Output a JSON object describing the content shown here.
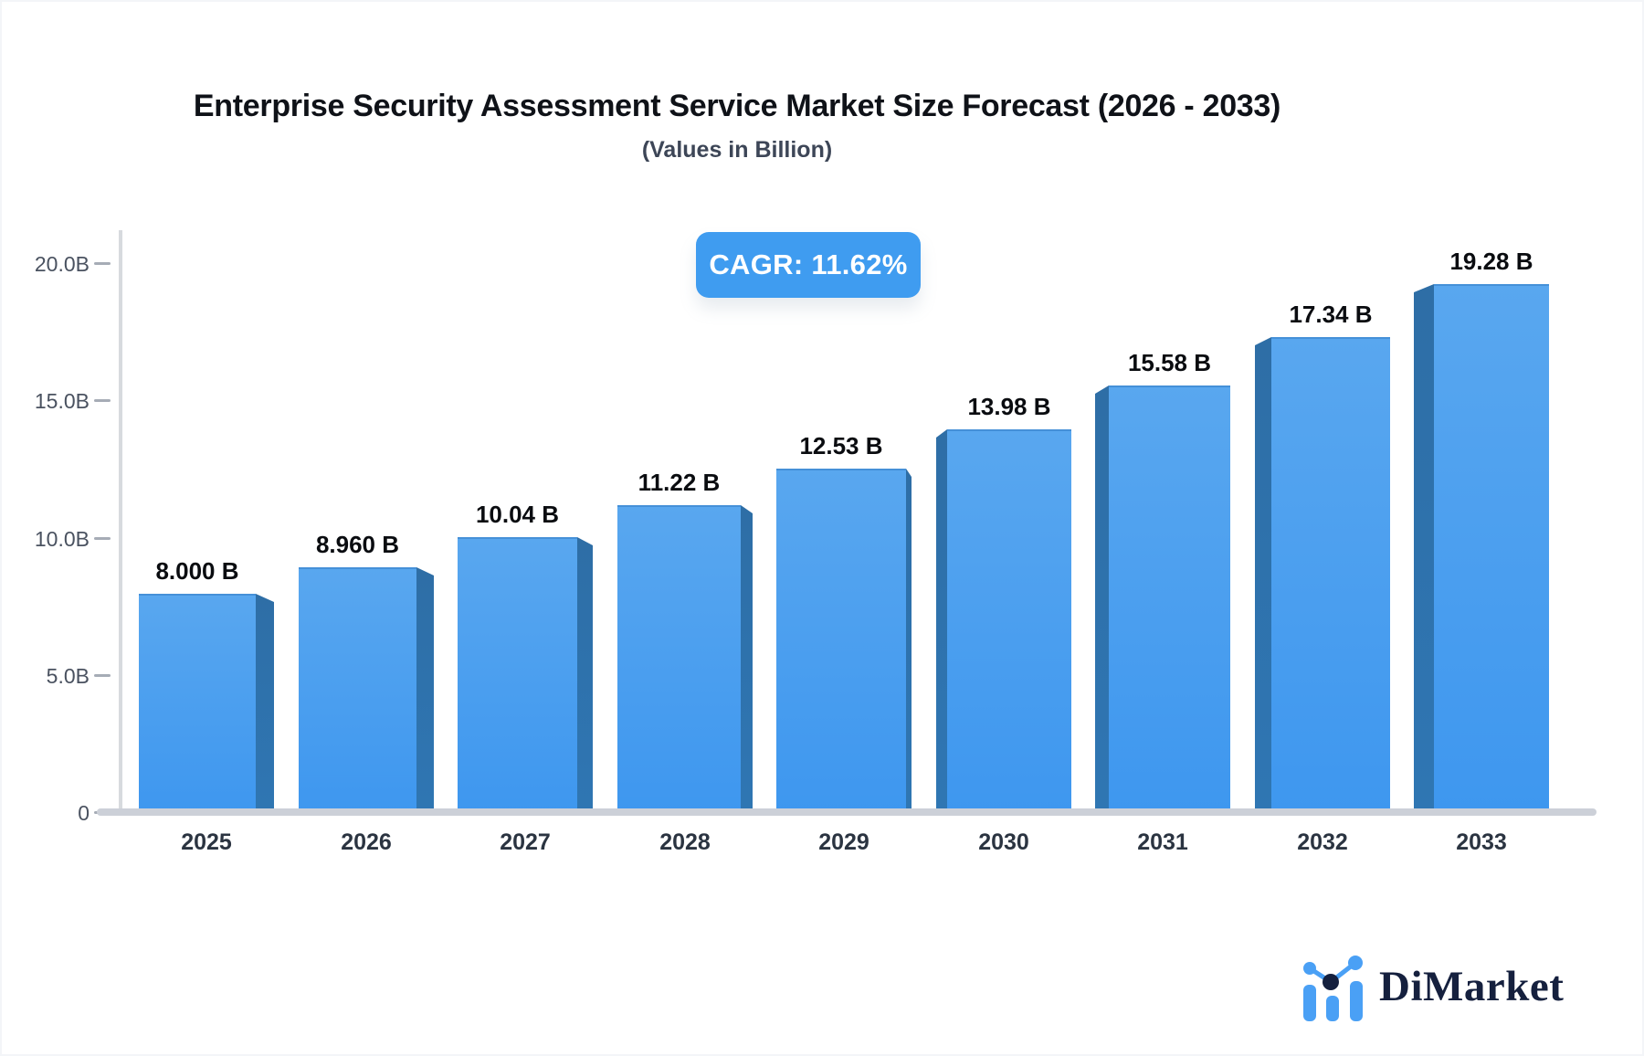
{
  "title": "Enterprise Security Assessment Service Market Size Forecast (2026 - 2033)",
  "subtitle": "(Values in Billion)",
  "badge": {
    "label": "CAGR: 11.62%"
  },
  "brand": {
    "name": "DiMarket"
  },
  "colors": {
    "accent": "#3f9cf0",
    "bar_face_top": "#59a7ef",
    "bar_face_bottom": "#3e97ef",
    "bar_side": "#2f76b3",
    "bar_side_dark": "#2e6ea6",
    "axis": "#d7dade",
    "baseline": "#ccd0d8",
    "logo_blue": "#4aa0f5",
    "logo_navy": "#15203e"
  },
  "chart_data": {
    "type": "bar",
    "title": "Enterprise Security Assessment Service Market Size Forecast (2026 - 2033)",
    "subtitle": "(Values in Billion)",
    "annotation": "CAGR: 11.62%",
    "categories": [
      "2025",
      "2026",
      "2027",
      "2028",
      "2029",
      "2030",
      "2031",
      "2032",
      "2033"
    ],
    "values": [
      8.0,
      8.96,
      10.04,
      11.22,
      12.53,
      13.98,
      15.58,
      17.34,
      19.28
    ],
    "value_labels": [
      "8.000 B",
      "8.960 B",
      "10.04 B",
      "11.22 B",
      "12.53 B",
      "13.98 B",
      "15.58 B",
      "17.34 B",
      "19.28 B"
    ],
    "xlabel": "",
    "ylabel": "",
    "ylim": [
      0,
      20
    ],
    "yticks": [
      {
        "value": 0,
        "label": "0"
      },
      {
        "value": 5,
        "label": "5.0B"
      },
      {
        "value": 10,
        "label": "10.0B"
      },
      {
        "value": 15,
        "label": "15.0B"
      },
      {
        "value": 20,
        "label": "20.0B"
      }
    ],
    "grid": false,
    "legend": false
  }
}
